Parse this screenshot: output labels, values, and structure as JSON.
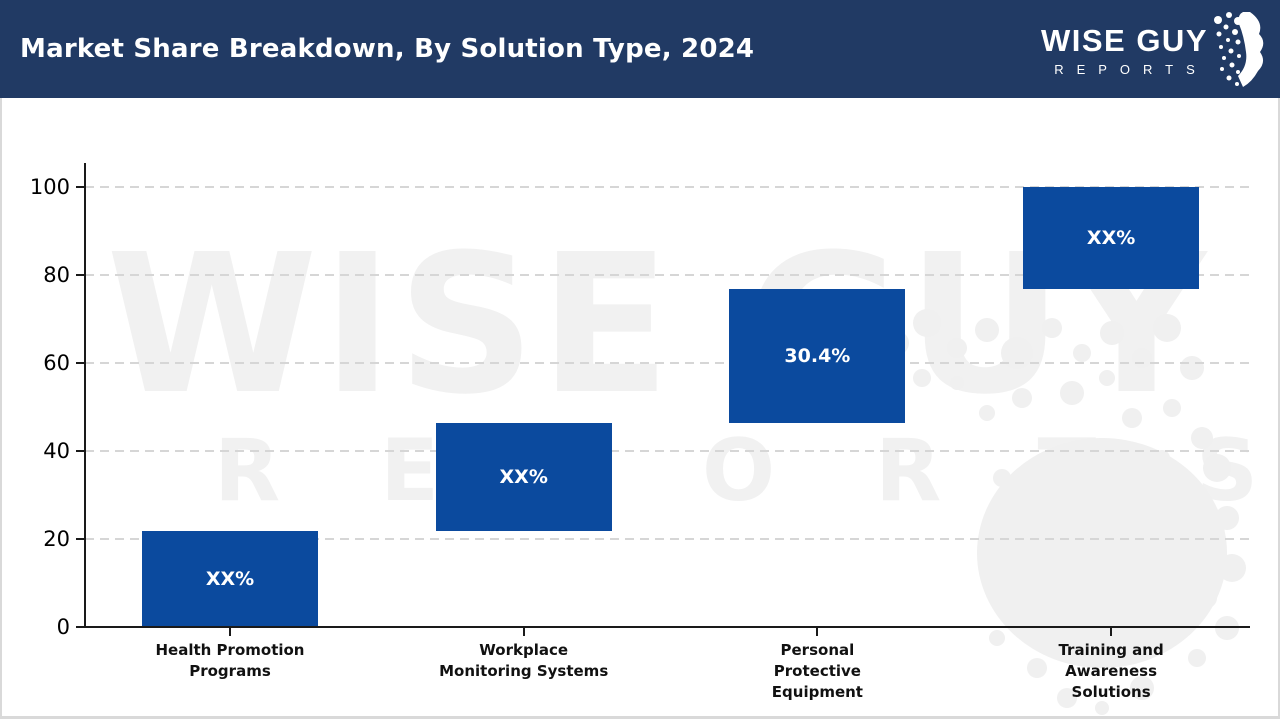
{
  "header": {
    "title": "Market Share Breakdown, By Solution Type, 2024",
    "logo": {
      "name": "WISE GUY",
      "sub": "REPORTS"
    }
  },
  "watermark": {
    "big": "WISE GUY",
    "sub": "REPORTS"
  },
  "colors": {
    "header_bg": "#213a64",
    "bar": "#0b4a9e",
    "bar_label": "#ffffff",
    "grid": "#d6d6d6",
    "axis": "#1a1a1a",
    "watermark": "#f1f1f1",
    "body_border": "#d9d9d9"
  },
  "chart_data": {
    "type": "bar",
    "subtype": "floating-waterfall",
    "title": "Market Share Breakdown, By Solution Type, 2024",
    "categories": [
      "Health Promotion Programs",
      "Workplace Monitoring Systems",
      "Personal Protective Equipment",
      "Training and Awareness Solutions"
    ],
    "category_lines": [
      [
        "Health Promotion",
        "Programs"
      ],
      [
        "Workplace",
        "Monitoring Systems"
      ],
      [
        "Personal",
        "Protective",
        "Equipment"
      ],
      [
        "Training and",
        "Awareness",
        "Solutions"
      ]
    ],
    "segments": [
      {
        "category": "Health Promotion Programs",
        "start": 0,
        "end": 21.8,
        "label": "XX%"
      },
      {
        "category": "Workplace Monitoring Systems",
        "start": 21.8,
        "end": 46.4,
        "label": "XX%"
      },
      {
        "category": "Personal Protective Equipment",
        "start": 46.4,
        "end": 76.8,
        "label": "30.4%"
      },
      {
        "category": "Training and Awareness Solutions",
        "start": 76.8,
        "end": 100,
        "label": "XX%"
      }
    ],
    "xlabel": "",
    "ylabel": "",
    "ylim": [
      0,
      100
    ],
    "yticks": [
      0,
      20,
      40,
      60,
      80,
      100
    ],
    "grid": "horizontal-dashed",
    "legend": "none"
  }
}
